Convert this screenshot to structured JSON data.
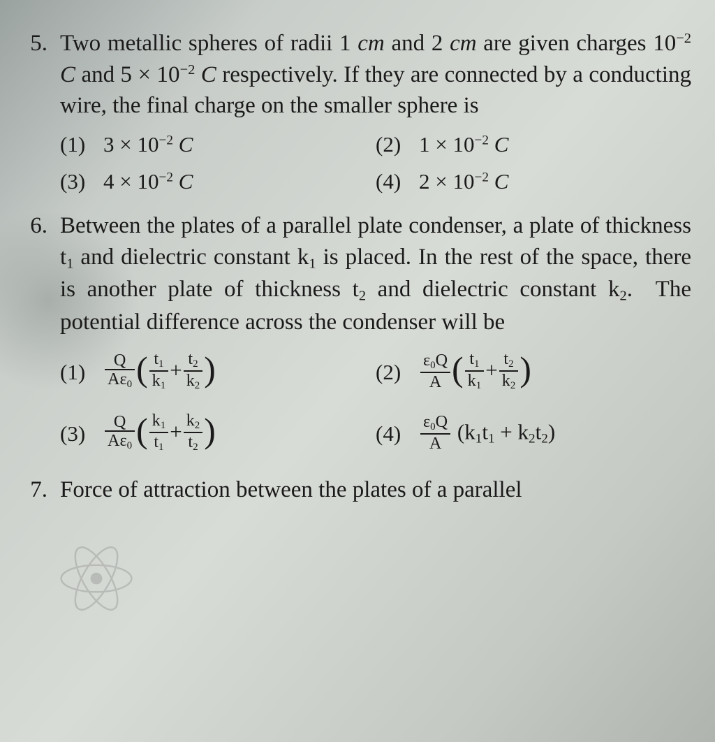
{
  "q5": {
    "num": "5.",
    "text_html": "Two metallic spheres of radii 1 <i>cm</i> and 2 <i>cm</i> are given charges 10<sup>−</sup><sup>2</sup> <i>C</i> and 5 × 10<sup>−</sup><sup>2</sup> <i>C</i> respectively. If they are connected by a conducting wire, the final charge on the smaller sphere is",
    "opts": [
      {
        "n": "(1)",
        "html": "3 × 10<sup>−</sup><sup>2</sup> <i>C</i>"
      },
      {
        "n": "(2)",
        "html": "1 × 10<sup>−</sup><sup>2</sup> <i>C</i>"
      },
      {
        "n": "(3)",
        "html": "4 × 10<sup>−</sup><sup>2</sup> <i>C</i>"
      },
      {
        "n": "(4)",
        "html": "2 × 10<sup>−</sup><sup>2</sup> <i>C</i>"
      }
    ]
  },
  "q6": {
    "num": "6.",
    "text_html": "Between the plates of a parallel plate condenser, a plate of thickness t<sub>1</sub> and dielectric constant k<sub>1</sub> is placed. In the rest of the space, there is another plate of thickness t<sub>2</sub> and dielectric constant k<sub>2</sub>.&nbsp; The potential difference across the condenser will be",
    "opts": [
      {
        "n": "(1)",
        "html": "<span class=\"frac\"><span class=\"num\">Q</span><span class=\"den\">Aε<sub>0</sub></span></span><span class=\"paren\">(</span><span class=\"frac\"><span class=\"num\">t<sub>1</sub></span><span class=\"den\">k<sub>1</sub></span></span>+<span class=\"frac\"><span class=\"num\">t<sub>2</sub></span><span class=\"den\">k<sub>2</sub></span></span><span class=\"paren\">)</span>"
      },
      {
        "n": "(2)",
        "html": "<span class=\"frac\"><span class=\"num\">ε<sub>0</sub>Q</span><span class=\"den\">A</span></span><span class=\"paren\">(</span><span class=\"frac\"><span class=\"num\">t<sub>1</sub></span><span class=\"den\">k<sub>1</sub></span></span>+<span class=\"frac\"><span class=\"num\">t<sub>2</sub></span><span class=\"den\">k<sub>2</sub></span></span><span class=\"paren\">)</span>"
      },
      {
        "n": "(3)",
        "html": "<span class=\"frac\"><span class=\"num\">Q</span><span class=\"den\">Aε<sub>0</sub></span></span><span class=\"paren\">(</span><span class=\"frac\"><span class=\"num\">k<sub>1</sub></span><span class=\"den\">t<sub>1</sub></span></span>+<span class=\"frac\"><span class=\"num\">k<sub>2</sub></span><span class=\"den\">t<sub>2</sub></span></span><span class=\"paren\">)</span>"
      },
      {
        "n": "(4)",
        "html": "<span class=\"frac\"><span class=\"num\">ε<sub>0</sub>Q</span><span class=\"den\">A</span></span> (k<sub>1</sub>t<sub>1</sub> + k<sub>2</sub>t<sub>2</sub>)"
      }
    ]
  },
  "q7": {
    "num": "7.",
    "text_html": "Force of attraction between the plates of a parallel"
  },
  "colors": {
    "text": "#1a1a1a",
    "bg_light": "#d8dcd6",
    "bg_dark": "#9aa2a0"
  }
}
